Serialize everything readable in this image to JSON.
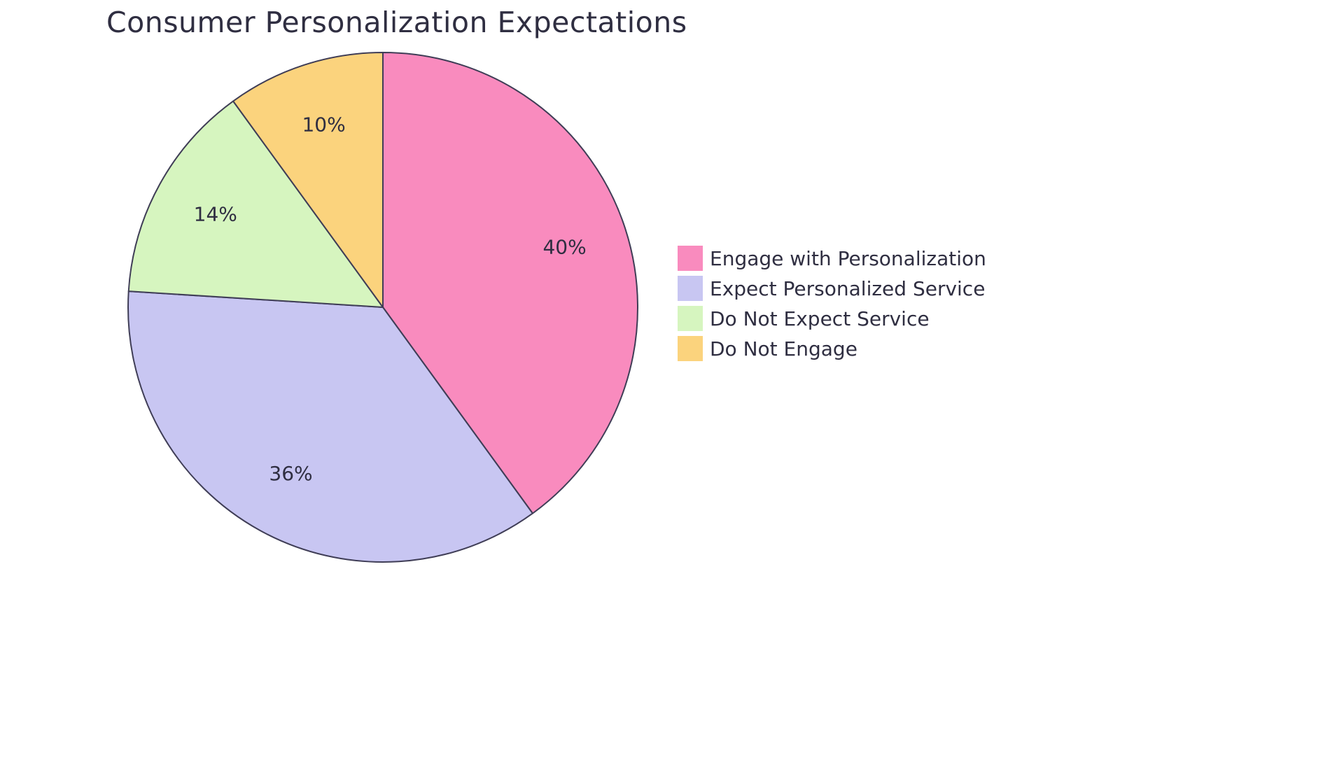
{
  "title": "Consumer Personalization Expectations",
  "colors": {
    "background": "#FFFFFF",
    "outline": "#3F3D56",
    "text": "#2F2E41"
  },
  "chart_data": {
    "type": "pie",
    "title": "Consumer Personalization Expectations",
    "categories": [
      "Engage with Personalization",
      "Expect Personalized Service",
      "Do Not Expect Service",
      "Do Not Engage"
    ],
    "values": [
      40,
      36,
      14,
      10
    ],
    "unit": "%",
    "slice_labels": [
      "40%",
      "36%",
      "14%",
      "10%"
    ],
    "slice_colors": [
      "#F98BBE",
      "#C8C6F2",
      "#D6F5BF",
      "#FBD37D"
    ],
    "start_angle_deg": 0,
    "direction": "clockwise",
    "legend_position": "right",
    "grid": false
  },
  "legend": {
    "items": [
      {
        "label": "Engage with Personalization",
        "color": "#F98BBE"
      },
      {
        "label": "Expect Personalized Service",
        "color": "#C8C6F2"
      },
      {
        "label": "Do Not Expect Service",
        "color": "#D6F5BF"
      },
      {
        "label": "Do Not Engage",
        "color": "#FBD37D"
      }
    ]
  }
}
